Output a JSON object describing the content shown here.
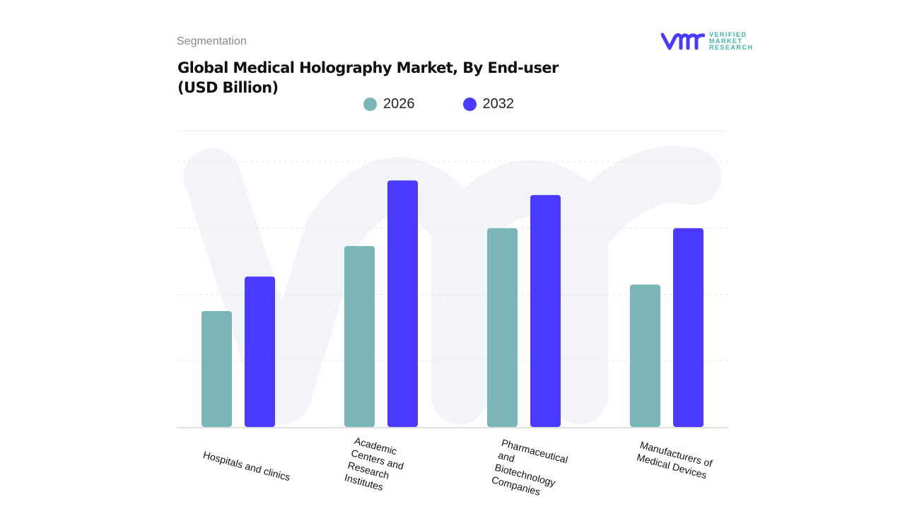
{
  "header": {
    "section": "Segmentation",
    "logo_text": [
      "VERIFIED",
      "MARKET",
      "RESEARCH"
    ]
  },
  "colors": {
    "2026": "#7ab5b8",
    "2032": "#4a3aff",
    "grid": "#e6e6e6",
    "watermark": "#f2f3fa"
  },
  "chart_data": {
    "type": "bar",
    "title": "Global Medical Holography Market, By End-user (USD Billion)",
    "categories": [
      "Hospitals and clinics",
      "Academic Centers and Research Institutes",
      "Pharmaceutical and Biotechnology Companies",
      "Manufacturers of Medical Devices"
    ],
    "series": [
      {
        "name": "2026",
        "values": [
          1.75,
          2.73,
          3.0,
          2.15
        ]
      },
      {
        "name": "2032",
        "values": [
          2.27,
          3.72,
          3.5,
          3.0
        ]
      }
    ],
    "ylim": [
      0,
      4
    ],
    "grid": true,
    "y_tick_labels_shown": false,
    "legend": "top-center"
  }
}
